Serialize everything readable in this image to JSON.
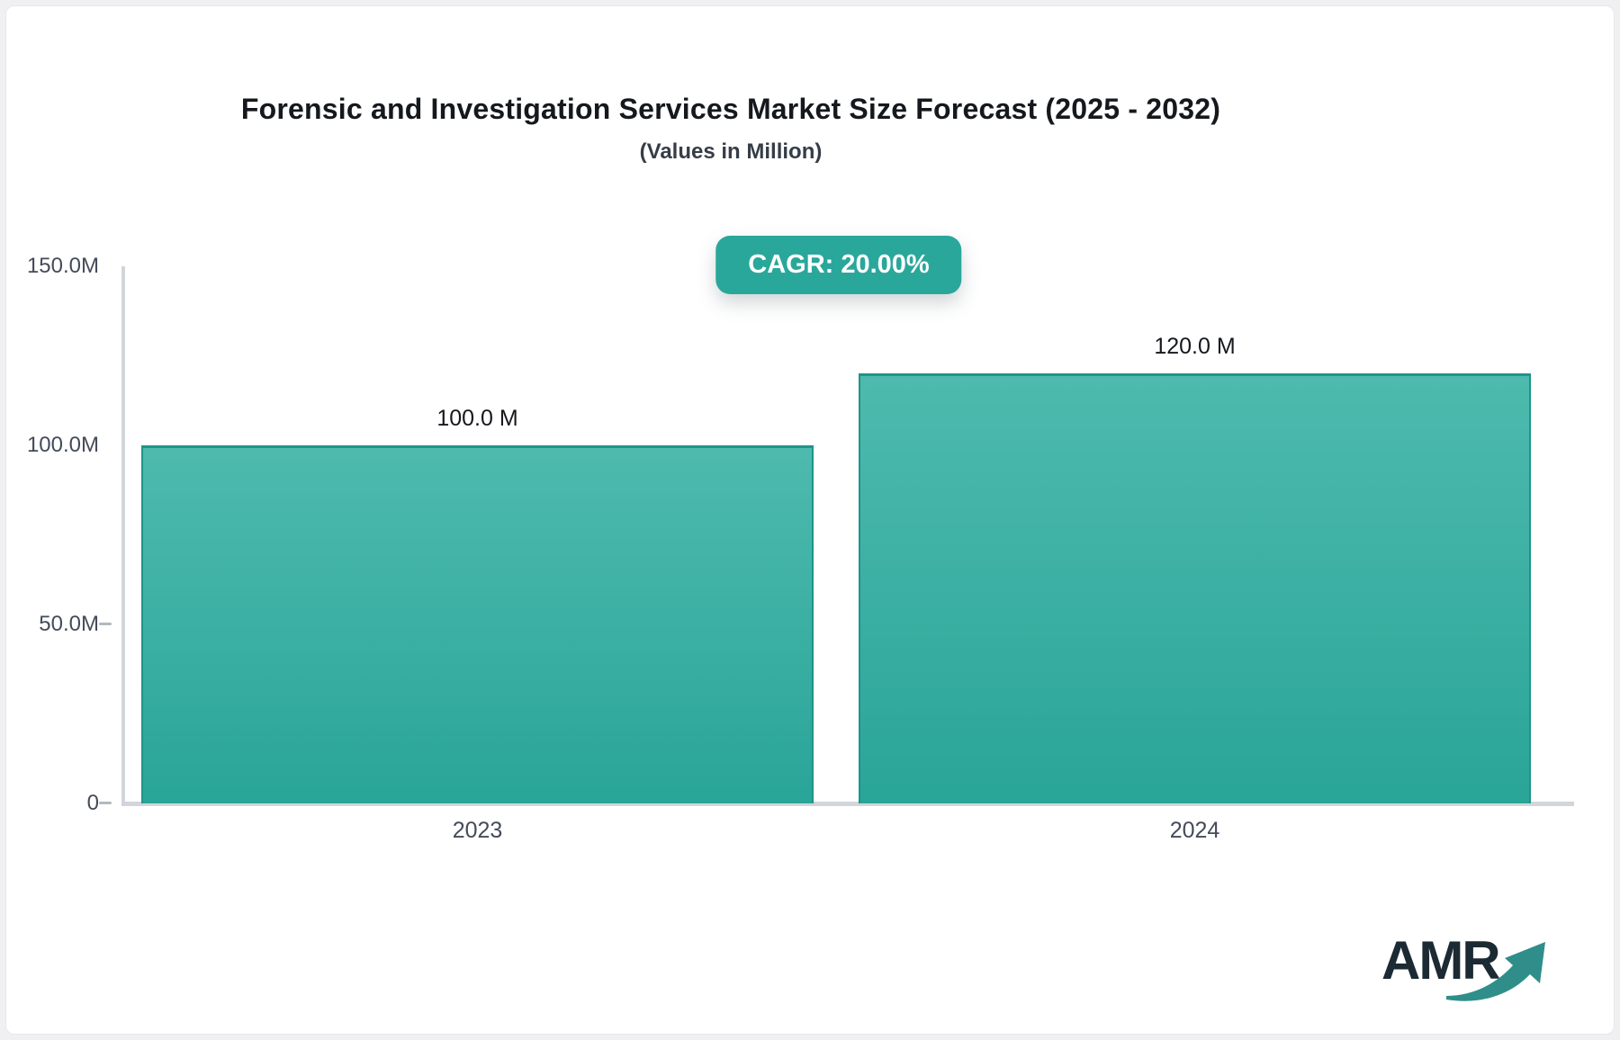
{
  "chart_data": {
    "type": "bar",
    "title": "Forensic and Investigation Services Market Size Forecast (2025 - 2032)",
    "subtitle": "(Values in Million)",
    "cagr_label": "CAGR: 20.00%",
    "categories": [
      "2023",
      "2024"
    ],
    "values": [
      100.0,
      120.0
    ],
    "bar_labels": [
      "100.0 M",
      "120.0 M"
    ],
    "unit": "Million",
    "xlabel": "",
    "ylabel": "",
    "ylim": [
      0,
      150
    ],
    "yticks": [
      {
        "label": "150.0M",
        "value": 150,
        "dash": false
      },
      {
        "label": "100.0M",
        "value": 100,
        "dash": false
      },
      {
        "label": "50.0M",
        "value": 50,
        "dash": true
      },
      {
        "label": "0",
        "value": 0,
        "dash": true
      }
    ],
    "grid": false,
    "legend": false,
    "colors": {
      "bar_gradient_top": "#4ebaae",
      "bar_gradient_bottom": "#29a598",
      "bar_border": "#1f948a",
      "badge_background": "#2aa79b",
      "badge_text": "#ffffff",
      "axis_line": "#d2d5da",
      "tick_text": "#444b59",
      "value_label_text": "#15181d",
      "logo_text": "#1b2a33",
      "logo_arrow": "#2f8e8a"
    }
  },
  "logo": {
    "text": "AMR"
  }
}
